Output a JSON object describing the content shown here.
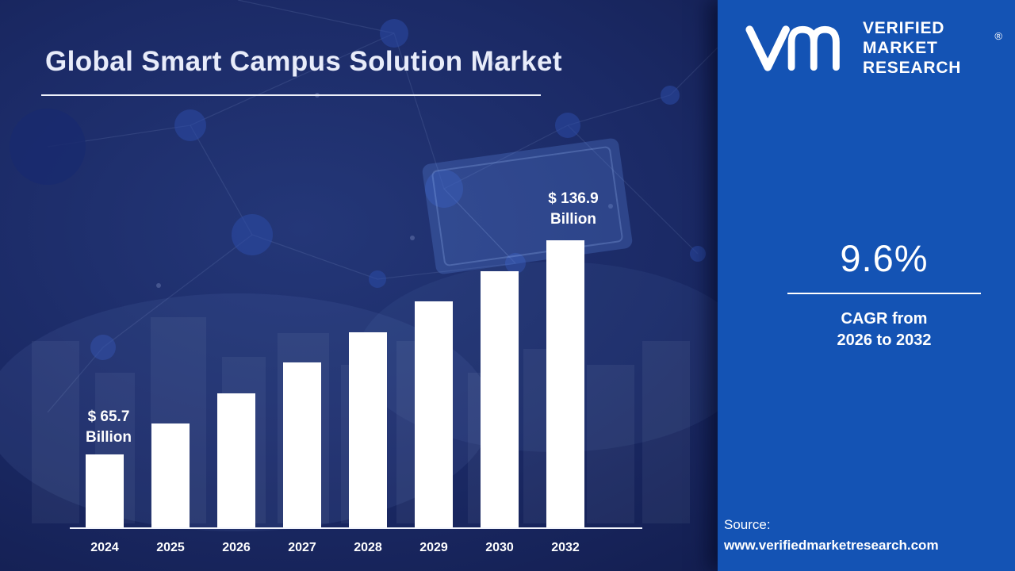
{
  "title": "Global Smart Campus Solution Market",
  "chart_data": {
    "type": "bar",
    "title": "Global Smart Campus Solution Market",
    "categories": [
      "2024",
      "2025",
      "2026",
      "2027",
      "2028",
      "2029",
      "2030",
      "2032"
    ],
    "values": [
      65.7,
      72.0,
      78.9,
      86.5,
      94.8,
      103.9,
      113.9,
      136.9
    ],
    "unit": "USD Billion",
    "ylim": [
      0,
      150
    ],
    "grid": "off",
    "legend": "off",
    "bar_color": "#ffffff",
    "annotations": [
      {
        "category": "2024",
        "line1": "$ 65.7",
        "line2": "Billion"
      },
      {
        "category": "2032",
        "line1": "$ 136.9",
        "line2": "Billion"
      }
    ]
  },
  "right_panel": {
    "background_color": "#1453b4",
    "brand": {
      "monogram": "VM",
      "lines": [
        "VERIFIED",
        "MARKET",
        "RESEARCH"
      ],
      "registered_mark": "®"
    },
    "cagr": {
      "value": "9.6%",
      "label_line1": "CAGR from",
      "label_line2": "2026 to 2032"
    },
    "source": {
      "label": "Source:",
      "url": "www.verifiedmarketresearch.com"
    }
  },
  "left_panel": {
    "background_color": "#1b2a66",
    "text_color": "#ffffff"
  }
}
